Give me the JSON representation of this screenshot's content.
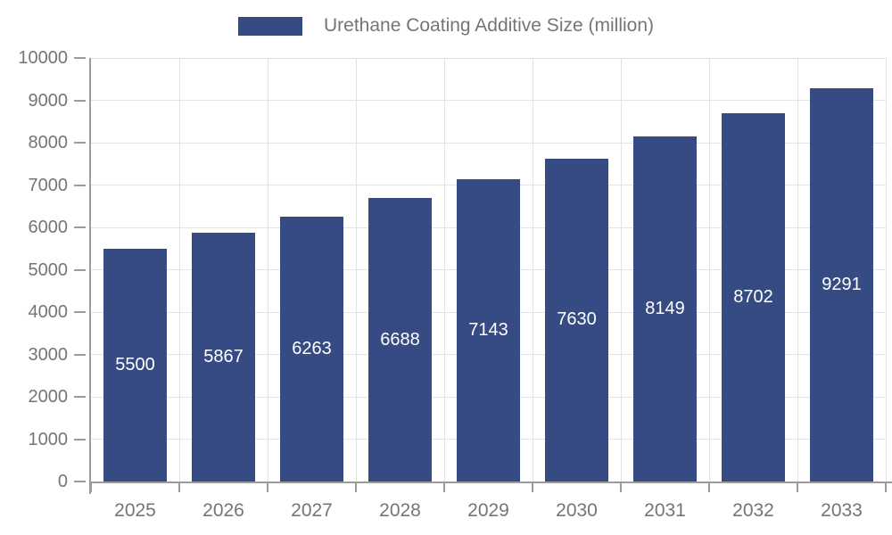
{
  "chart_data": {
    "type": "bar",
    "title": "Urethane Coating Additive Size (million)",
    "legend_entries": [
      "Urethane Coating Additive Size (million)"
    ],
    "legend_position": "top-center",
    "categories": [
      "2025",
      "2026",
      "2027",
      "2028",
      "2029",
      "2030",
      "2031",
      "2032",
      "2033"
    ],
    "values": [
      5500,
      5867,
      6263,
      6688,
      7143,
      7630,
      8149,
      8702,
      9291
    ],
    "xlabel": "",
    "ylabel": "",
    "ylim": [
      0,
      10000
    ],
    "ytick_step": 1000,
    "yticks": [
      0,
      1000,
      2000,
      3000,
      4000,
      5000,
      6000,
      7000,
      8000,
      9000,
      10000
    ],
    "grid": true,
    "value_labels_inside_bars": true,
    "colors": {
      "bar": "#364a84",
      "bar_value_label": "#ffffff",
      "axis_text": "#757575",
      "axis_line": "#9b9b9b",
      "gridline": "#e2e3ea",
      "background": "#ffffff"
    }
  }
}
